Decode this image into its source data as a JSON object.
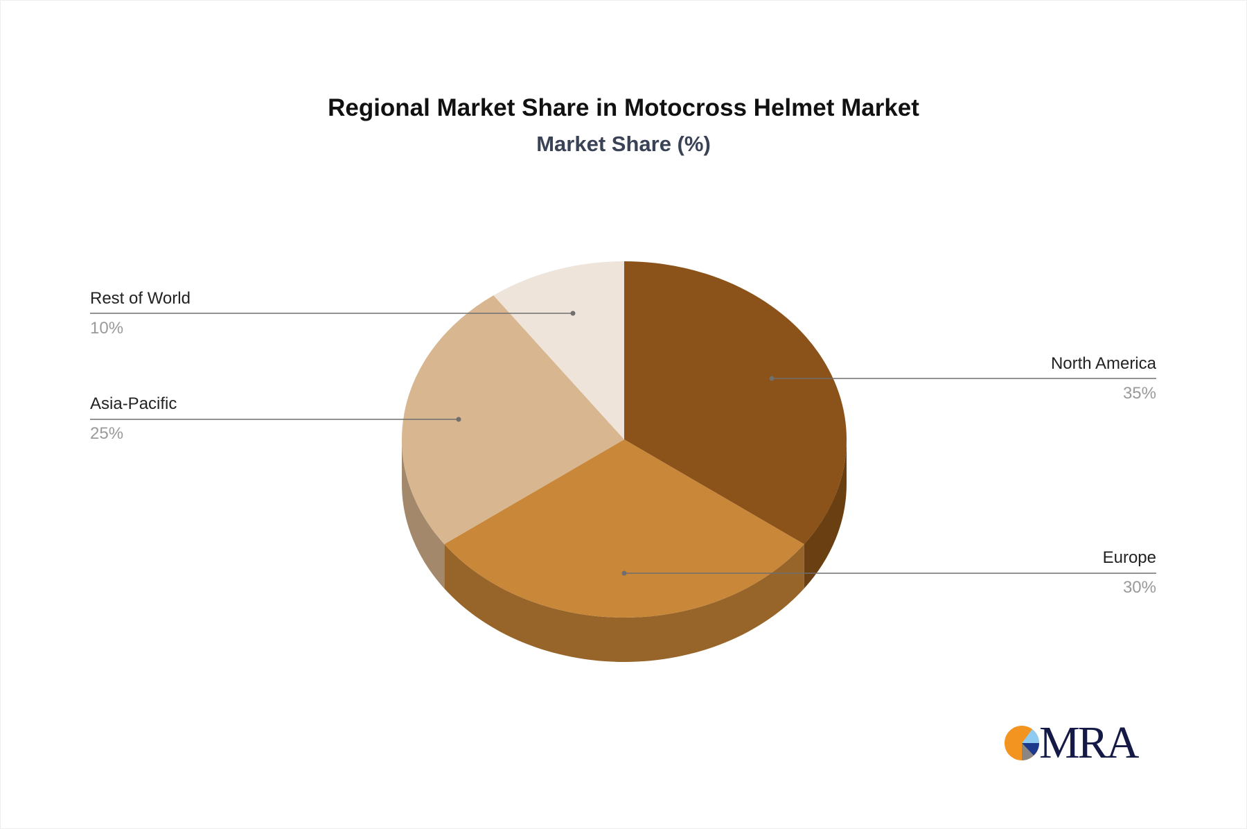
{
  "chart_data": {
    "type": "pie",
    "style": "3d",
    "title": "Regional Market Share in Motocross Helmet Market",
    "subtitle": "Market Share (%)",
    "slices": [
      {
        "label": "North America",
        "value": 35,
        "display": "35%",
        "color": "#8B5319",
        "side_color": "#6A3F12"
      },
      {
        "label": "Europe",
        "value": 30,
        "display": "30%",
        "color": "#C98739",
        "side_color": "#97652A"
      },
      {
        "label": "Asia-Pacific",
        "value": 25,
        "display": "25%",
        "color": "#D8B690",
        "side_color": "#A3886B"
      },
      {
        "label": "Rest of World",
        "value": 10,
        "display": "10%",
        "color": "#EEE4DA",
        "side_color": "#B8AFA6"
      }
    ]
  },
  "logo": {
    "text": "MRA",
    "colors": [
      "#F2941F",
      "#8FCBF0",
      "#1B3A8C",
      "#8A8683"
    ]
  }
}
